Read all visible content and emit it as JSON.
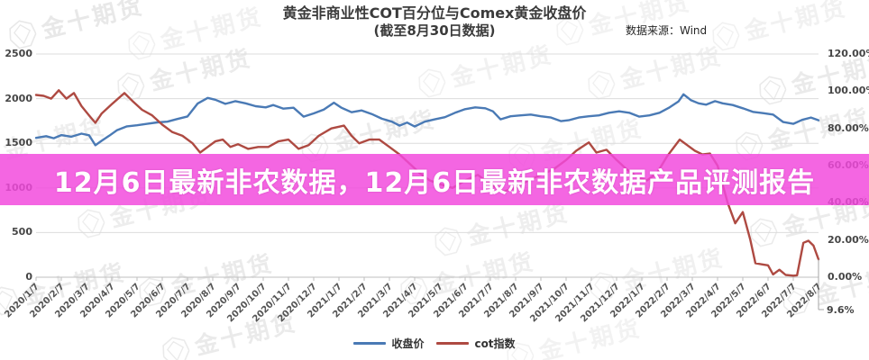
{
  "header": {
    "title_line1": "黄金非商业性COT百分位与Comex黄金收盘价",
    "title_line2": "(截至8月30日数据)",
    "source": "数据来源：Wind"
  },
  "banner": {
    "text": "12月6日最新非农数据，12月6日最新非农数据产品评测报告",
    "bg": "#F249DC",
    "bg_alpha": 0.84,
    "text_color": "#FFFFFF"
  },
  "watermark": {
    "text": "金十期货",
    "color": "#E7E7E7"
  },
  "legend": [
    {
      "label": "收盘价",
      "color": "#4A7AB5"
    },
    {
      "label": "cot指数",
      "color": "#AE4A42"
    }
  ],
  "chart_data": {
    "type": "line",
    "title": "黄金非商业性COT百分位与Comex黄金收盘价",
    "subtitle": "(截至8月30日数据)",
    "grid": "horizontal",
    "legend_position": "bottom",
    "x_labels": [
      "2020/1/7",
      "2020/2/7",
      "2020/3/7",
      "2020/4/7",
      "2020/5/7",
      "2020/6/7",
      "2020/7/7",
      "2020/8/7",
      "2020/9/7",
      "2020/10/7",
      "2020/11/7",
      "2020/12/7",
      "2021/1/7",
      "2021/2/7",
      "2021/3/7",
      "2021/4/7",
      "2021/5/7",
      "2021/6/7",
      "2021/7/7",
      "2021/8/7",
      "2021/9/7",
      "2021/10/7",
      "2021/11/7",
      "2021/12/7",
      "2022/1/7",
      "2022/2/7",
      "2022/3/7",
      "2022/4/7",
      "2022/5/7",
      "2022/6/7",
      "2022/7/7",
      "2022/8/7"
    ],
    "axes": {
      "left": {
        "min": 0,
        "max": 2500,
        "ticks": [
          0,
          500,
          1000,
          1500,
          2000,
          2500
        ],
        "tick_labels": [
          "0",
          "500",
          "1000",
          "1500",
          "2000",
          "2500"
        ]
      },
      "right": {
        "min": 0,
        "max": 120,
        "ticks": [
          0,
          20,
          40,
          60,
          80,
          100,
          120
        ],
        "tick_labels": [
          "0.00%",
          "20.00%",
          "40.00%",
          "60.00%",
          "80.00%",
          "100.00%",
          "120.00%"
        ]
      }
    },
    "series": [
      {
        "name": "收盘价",
        "axis": "left",
        "color": "#4A7AB5",
        "points": [
          [
            0,
            1560
          ],
          [
            0.4,
            1580
          ],
          [
            0.7,
            1556
          ],
          [
            1,
            1592
          ],
          [
            1.4,
            1574
          ],
          [
            1.8,
            1608
          ],
          [
            2.1,
            1590
          ],
          [
            2.35,
            1478
          ],
          [
            2.6,
            1528
          ],
          [
            2.9,
            1585
          ],
          [
            3.2,
            1645
          ],
          [
            3.6,
            1690
          ],
          [
            4,
            1702
          ],
          [
            4.4,
            1718
          ],
          [
            4.8,
            1734
          ],
          [
            5.2,
            1742
          ],
          [
            5.6,
            1772
          ],
          [
            6,
            1800
          ],
          [
            6.4,
            1945
          ],
          [
            6.8,
            2008
          ],
          [
            7.1,
            1988
          ],
          [
            7.5,
            1942
          ],
          [
            7.9,
            1972
          ],
          [
            8.3,
            1948
          ],
          [
            8.7,
            1915
          ],
          [
            9.1,
            1902
          ],
          [
            9.4,
            1928
          ],
          [
            9.8,
            1888
          ],
          [
            10.2,
            1898
          ],
          [
            10.6,
            1798
          ],
          [
            11,
            1835
          ],
          [
            11.4,
            1878
          ],
          [
            11.8,
            1955
          ],
          [
            12.1,
            1898
          ],
          [
            12.5,
            1848
          ],
          [
            12.9,
            1868
          ],
          [
            13.3,
            1828
          ],
          [
            13.7,
            1775
          ],
          [
            14.1,
            1742
          ],
          [
            14.4,
            1698
          ],
          [
            14.7,
            1732
          ],
          [
            15,
            1688
          ],
          [
            15.4,
            1742
          ],
          [
            15.8,
            1768
          ],
          [
            16.2,
            1792
          ],
          [
            16.6,
            1842
          ],
          [
            17,
            1882
          ],
          [
            17.4,
            1902
          ],
          [
            17.8,
            1892
          ],
          [
            18.1,
            1858
          ],
          [
            18.4,
            1768
          ],
          [
            18.8,
            1802
          ],
          [
            19.2,
            1812
          ],
          [
            19.6,
            1822
          ],
          [
            20,
            1802
          ],
          [
            20.4,
            1788
          ],
          [
            20.8,
            1748
          ],
          [
            21.1,
            1758
          ],
          [
            21.5,
            1788
          ],
          [
            21.9,
            1802
          ],
          [
            22.3,
            1812
          ],
          [
            22.7,
            1842
          ],
          [
            23.1,
            1858
          ],
          [
            23.5,
            1842
          ],
          [
            23.9,
            1798
          ],
          [
            24.3,
            1812
          ],
          [
            24.7,
            1842
          ],
          [
            25.1,
            1902
          ],
          [
            25.45,
            1968
          ],
          [
            25.65,
            2048
          ],
          [
            25.95,
            1982
          ],
          [
            26.25,
            1948
          ],
          [
            26.55,
            1932
          ],
          [
            26.9,
            1972
          ],
          [
            27.2,
            1948
          ],
          [
            27.6,
            1928
          ],
          [
            28,
            1892
          ],
          [
            28.4,
            1852
          ],
          [
            28.8,
            1838
          ],
          [
            29.2,
            1822
          ],
          [
            29.6,
            1738
          ],
          [
            30,
            1718
          ],
          [
            30.35,
            1762
          ],
          [
            30.7,
            1788
          ],
          [
            31,
            1758
          ]
        ]
      },
      {
        "name": "cot指数",
        "axis": "right",
        "color": "#AE4A42",
        "points": [
          [
            0,
            98
          ],
          [
            0.3,
            97.5
          ],
          [
            0.6,
            96
          ],
          [
            0.9,
            100.5
          ],
          [
            1.2,
            96
          ],
          [
            1.5,
            99
          ],
          [
            1.8,
            92
          ],
          [
            2.1,
            87
          ],
          [
            2.35,
            83
          ],
          [
            2.6,
            88
          ],
          [
            3,
            93
          ],
          [
            3.5,
            99
          ],
          [
            3.8,
            95
          ],
          [
            4.2,
            90
          ],
          [
            4.6,
            87
          ],
          [
            5,
            82
          ],
          [
            5.4,
            78
          ],
          [
            5.8,
            76
          ],
          [
            6.2,
            72
          ],
          [
            6.5,
            67
          ],
          [
            6.8,
            70
          ],
          [
            7.1,
            73
          ],
          [
            7.4,
            74
          ],
          [
            7.7,
            70
          ],
          [
            8,
            71.5
          ],
          [
            8.4,
            69
          ],
          [
            8.8,
            70
          ],
          [
            9.2,
            70
          ],
          [
            9.6,
            73
          ],
          [
            10,
            74
          ],
          [
            10.4,
            69
          ],
          [
            10.8,
            71
          ],
          [
            11.2,
            76
          ],
          [
            11.7,
            80
          ],
          [
            12.2,
            81.5
          ],
          [
            12.5,
            76
          ],
          [
            12.8,
            72
          ],
          [
            13.2,
            74
          ],
          [
            13.6,
            74
          ],
          [
            14,
            70
          ],
          [
            14.4,
            66
          ],
          [
            14.8,
            61
          ],
          [
            15.2,
            56
          ],
          [
            15.6,
            52
          ],
          [
            16,
            50
          ],
          [
            16.5,
            48
          ],
          [
            17,
            52
          ],
          [
            17.5,
            55
          ],
          [
            18,
            50
          ],
          [
            18.5,
            46
          ],
          [
            19,
            48
          ],
          [
            19.5,
            52
          ],
          [
            20,
            55
          ],
          [
            20.5,
            58
          ],
          [
            21,
            63
          ],
          [
            21.4,
            68
          ],
          [
            21.9,
            72.5
          ],
          [
            22.2,
            67
          ],
          [
            22.6,
            68.5
          ],
          [
            23,
            63
          ],
          [
            23.4,
            58
          ],
          [
            23.8,
            54
          ],
          [
            24.2,
            52
          ],
          [
            24.6,
            56
          ],
          [
            25,
            65
          ],
          [
            25.5,
            74
          ],
          [
            25.8,
            71
          ],
          [
            26.1,
            68
          ],
          [
            26.4,
            66
          ],
          [
            26.7,
            66.5
          ],
          [
            27,
            60
          ],
          [
            27.4,
            40
          ],
          [
            27.7,
            29
          ],
          [
            28,
            35
          ],
          [
            28.3,
            20
          ],
          [
            28.5,
            7.5
          ],
          [
            28.8,
            6.8
          ],
          [
            29,
            6.4
          ],
          [
            29.2,
            1.5
          ],
          [
            29.45,
            4
          ],
          [
            29.7,
            1.2
          ],
          [
            30,
            0.8
          ],
          [
            30.15,
            1
          ],
          [
            30.4,
            18.5
          ],
          [
            30.6,
            19.6
          ],
          [
            30.8,
            17
          ],
          [
            31,
            9.6
          ]
        ]
      }
    ],
    "annotation": {
      "label": "9.6%",
      "value": 9.6,
      "x": 31,
      "series": "cot指数"
    }
  }
}
